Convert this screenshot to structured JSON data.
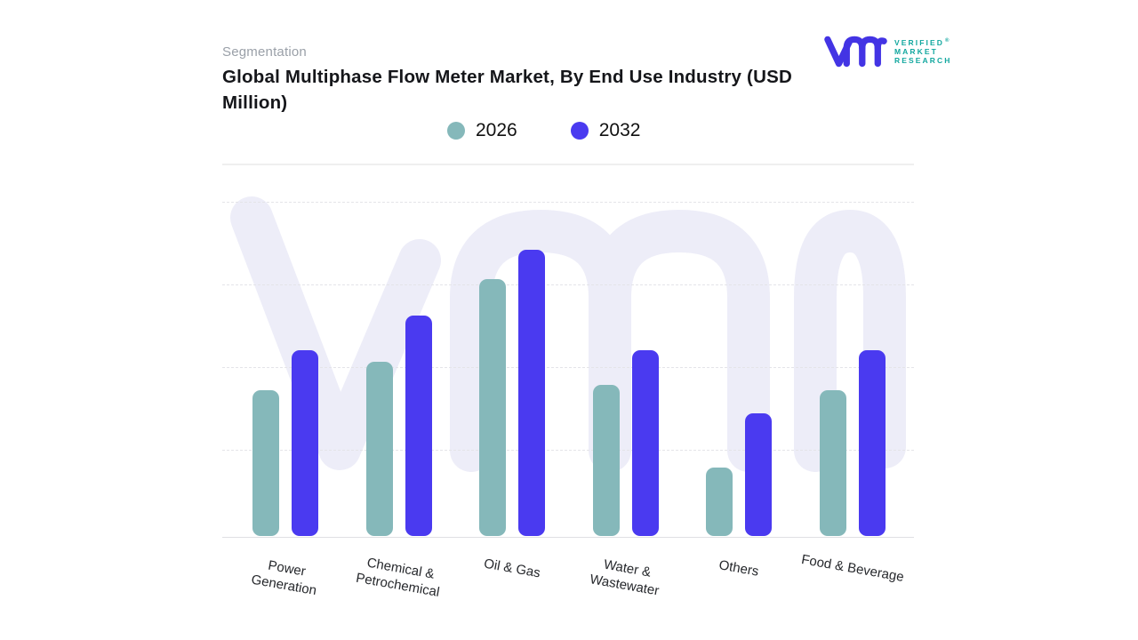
{
  "header": {
    "eyebrow": "Segmentation",
    "title": "Global Multiphase Flow Meter Market, By End Use Industry (USD Million)"
  },
  "logo": {
    "brand_lines": [
      "VERIFIED",
      "MARKET",
      "RESEARCH"
    ],
    "registered_mark": "®",
    "monogram_color": "#4334e4",
    "wordmark_color": "#12a79f"
  },
  "watermark": {
    "text": "vmr",
    "color": "#ededf8"
  },
  "chart_data": {
    "type": "bar",
    "title": "Global Multiphase Flow Meter Market, By End Use Industry (USD Million)",
    "categories": [
      "Power\nGeneration",
      "Chemical &\nPetrochemical",
      "Oil & Gas",
      "Water &\nWastewater",
      "Others",
      "Food & Beverage"
    ],
    "series": [
      {
        "name": "2026",
        "color": "#85b8ba",
        "values": [
          51,
          61,
          90,
          53,
          24,
          51
        ]
      },
      {
        "name": "2032",
        "color": "#4a3af0",
        "values": [
          65,
          77,
          100,
          65,
          43,
          65
        ]
      }
    ],
    "xlabel": "",
    "ylabel": "",
    "ylim": [
      0,
      130
    ],
    "y_axis_ticks_visible": false,
    "grid": "horizontal-dotted",
    "legend_position": "top-center",
    "value_note": "No y-axis tick labels shown; values are relative units with tallest bar (Oil & Gas 2032) = 100"
  }
}
